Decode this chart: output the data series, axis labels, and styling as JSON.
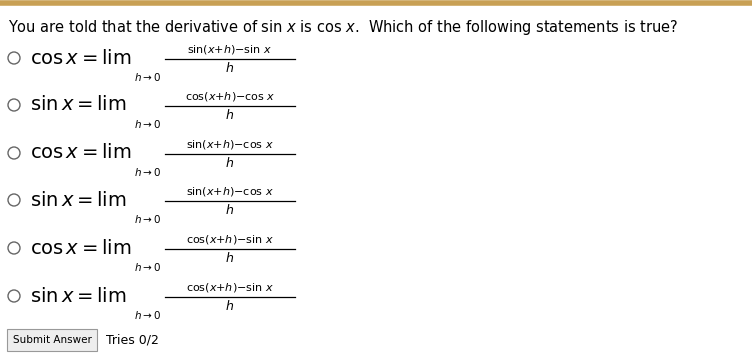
{
  "background_color": "#ffffff",
  "top_border_color": "#c8a055",
  "title": "You are told that the derivative of sin $x$ is cos $x$.  Which of the following statements is true?",
  "options": [
    {
      "lhs": "cos x = lim",
      "numerator": "sin(x+h)−sin x",
      "denominator": "h"
    },
    {
      "lhs": "sin x = lim",
      "numerator": "cos(x+h)−cos x",
      "denominator": "h"
    },
    {
      "lhs": "cos x = lim",
      "numerator": "sin(x+h)−cos x",
      "denominator": "h"
    },
    {
      "lhs": "sin x = lim",
      "numerator": "sin(x+h)−cos x",
      "denominator": "h"
    },
    {
      "lhs": "cos x = lim",
      "numerator": "cos(x+h)−sin x",
      "denominator": "h"
    },
    {
      "lhs": "sin x = lim",
      "numerator": "cos(x+h)−sin x",
      "denominator": "h"
    }
  ],
  "submit_label": "Submit Answer",
  "tries_label": "Tries 0/2",
  "fig_width": 7.52,
  "fig_height": 3.6,
  "dpi": 100
}
